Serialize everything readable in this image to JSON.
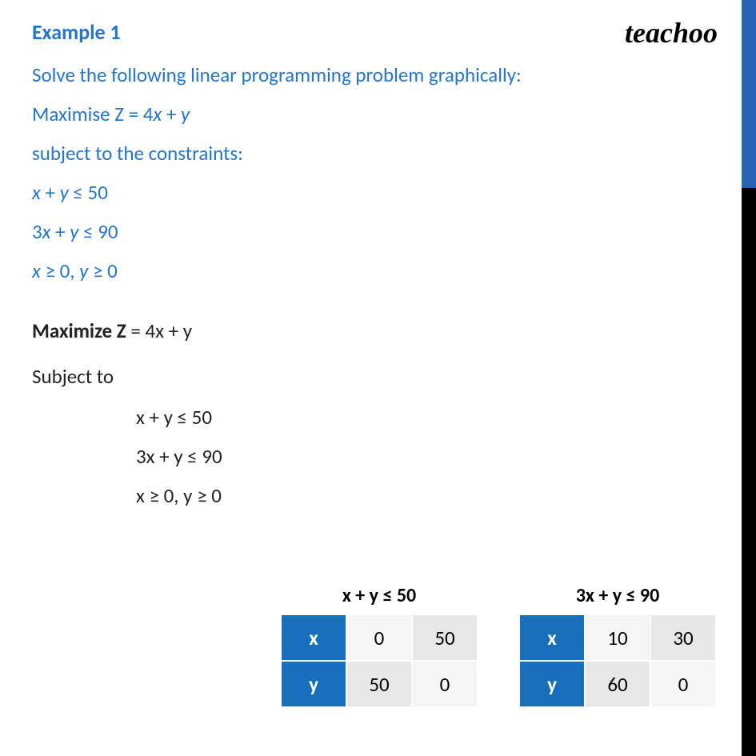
{
  "heading": "Example 1",
  "logo": "teachoo",
  "problem": {
    "intro": "Solve the following linear programming problem graphically:",
    "objective_prefix": "Maximise Z = 4",
    "objective_mid": " + ",
    "var_x": "x",
    "var_y": "y",
    "constraints_label": "subject to the constraints:",
    "c1_a": "x",
    "c1_b": " + ",
    "c1_c": "y",
    "c1_d": " ≤ 50",
    "c2_a": "3",
    "c2_b": "x",
    "c2_c": " + ",
    "c2_d": "y",
    "c2_e": " ≤ 90",
    "c3_a": "x",
    "c3_b": " ≥ 0, ",
    "c3_c": "y",
    "c3_d": " ≥ 0"
  },
  "solution": {
    "obj_bold": "Maximize Z",
    "obj_rest": " = 4x + y",
    "subject": "Subject to",
    "s1": "x + y ≤ 50",
    "s2": "3x + y ≤ 90",
    "s3": "x ≥ 0,  y ≥ 0"
  },
  "tables": [
    {
      "title": "x + y ≤ 50",
      "rows": [
        {
          "label": "x",
          "v1": "0",
          "v2": "50"
        },
        {
          "label": "y",
          "v1": "50",
          "v2": "0"
        }
      ]
    },
    {
      "title": "3x + y ≤ 90",
      "rows": [
        {
          "label": "x",
          "v1": "10",
          "v2": "30"
        },
        {
          "label": "y",
          "v1": "60",
          "v2": "0"
        }
      ]
    }
  ],
  "colors": {
    "blue": "#2675c9",
    "tableHeader": "#166fb8",
    "cellLight": "#f5f5f5",
    "cellDark": "#e7e7e7"
  }
}
